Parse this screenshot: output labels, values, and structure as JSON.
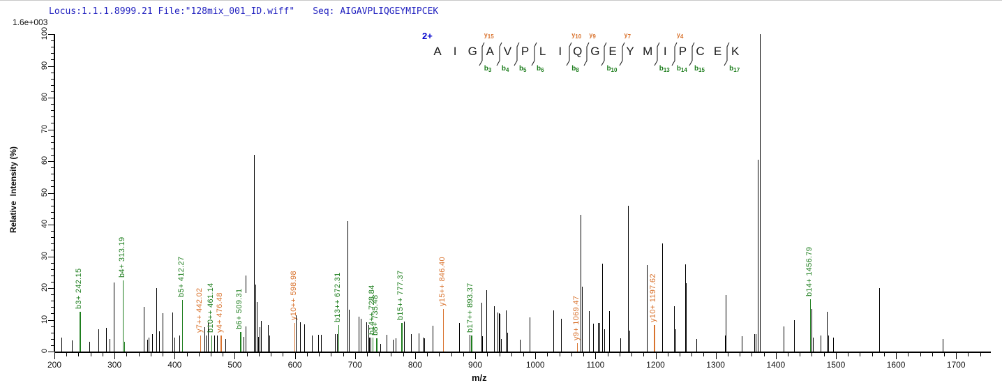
{
  "header": {
    "locus_file": "Locus:1.1.1.8999.21 File:\"128mix_001_ID.wiff\"",
    "seq_label": "Seq: AIGAVPLIQGEYMIPCEK"
  },
  "y_max_label": "1.6e+003",
  "colors": {
    "header_blue": "#2222c0",
    "charge_blue": "#0000cc",
    "b_ion_green": "#1e7e1e",
    "y_ion_orange": "#d9732e",
    "peak_black": "#000000"
  },
  "sequence": {
    "charge_label": "2+",
    "residues": "AIGAVPLIQGEYMIPCEK",
    "fragments": [
      {
        "after": 3,
        "y": "y15",
        "b": "b3"
      },
      {
        "after": 4,
        "b": "b4"
      },
      {
        "after": 5,
        "b": "b5"
      },
      {
        "after": 6,
        "b": "b6"
      },
      {
        "after": 8,
        "y": "y10",
        "b": "b8"
      },
      {
        "after": 9,
        "y": "y9"
      },
      {
        "after": 10,
        "b": "b10"
      },
      {
        "after": 11,
        "y": "y7"
      },
      {
        "after": 13,
        "b": "b13"
      },
      {
        "after": 14,
        "y": "y4",
        "b": "b14"
      },
      {
        "after": 15,
        "b": "b15"
      },
      {
        "after": 17,
        "b": "b17"
      }
    ]
  },
  "chart_data": {
    "type": "bar",
    "subtype": "ms2-peptide-fragment-spectrum",
    "title": "",
    "xlabel": "m/z",
    "ylabel": "Relative  Intensity (%)",
    "xlim": [
      200,
      1758
    ],
    "ylim": [
      0,
      100
    ],
    "x_major_ticks": [
      200,
      300,
      400,
      500,
      600,
      700,
      800,
      900,
      1000,
      1100,
      1200,
      1300,
      1400,
      1500,
      1600,
      1700
    ],
    "x_minor_step": 20,
    "y_major_ticks": [
      0,
      10,
      20,
      30,
      40,
      50,
      60,
      70,
      80,
      90,
      100
    ],
    "y_minor_step": 2,
    "grid": false,
    "legend": "none",
    "floating_mark": {
      "mz": 518.5,
      "from_pct": 18.5,
      "to_pct": 24
    },
    "peaks": [
      [
        212,
        4.5,
        "k"
      ],
      [
        229,
        3.6,
        "k"
      ],
      [
        242.15,
        12.5,
        "b",
        "b3+ 242.15"
      ],
      [
        258,
        3.1,
        "k"
      ],
      [
        273,
        7.1,
        "k"
      ],
      [
        286,
        7.4,
        "k"
      ],
      [
        292,
        3.9,
        "k"
      ],
      [
        299,
        21.8,
        "k"
      ],
      [
        313.19,
        22.5,
        "b",
        "b4+ 313.19"
      ],
      [
        316,
        3,
        "b"
      ],
      [
        348,
        14,
        "k"
      ],
      [
        354,
        3.8,
        "k"
      ],
      [
        357,
        4.5,
        "k"
      ],
      [
        362,
        5.5,
        "k"
      ],
      [
        369.5,
        19.9,
        "k"
      ],
      [
        374,
        6.3,
        "k"
      ],
      [
        380,
        12,
        "k"
      ],
      [
        396,
        12.4,
        "k"
      ],
      [
        400,
        4.5,
        "k"
      ],
      [
        408,
        5,
        "k"
      ],
      [
        412.27,
        16.3,
        "b",
        "b5+ 412.27"
      ],
      [
        442.02,
        5,
        "y",
        "y7++ 442.02"
      ],
      [
        449,
        7.7,
        "k"
      ],
      [
        452,
        5,
        "k"
      ],
      [
        455,
        9,
        "k"
      ],
      [
        461.14,
        5.1,
        "b",
        "b10++ 461.14"
      ],
      [
        466,
        5,
        "k"
      ],
      [
        470,
        5,
        "k"
      ],
      [
        476.48,
        5.1,
        "y",
        "y4+ 476.48"
      ],
      [
        484,
        4,
        "k"
      ],
      [
        509.31,
        6.2,
        "b",
        "b6+ 509.31"
      ],
      [
        515,
        4.7,
        "k"
      ],
      [
        518,
        7.9,
        "k"
      ],
      [
        532,
        62,
        "k"
      ],
      [
        534,
        21.2,
        "k"
      ],
      [
        537,
        15.7,
        "k"
      ],
      [
        539,
        4.7,
        "k"
      ],
      [
        541,
        7.7,
        "k"
      ],
      [
        544,
        9.6,
        "k"
      ],
      [
        555,
        8.4,
        "k"
      ],
      [
        557,
        5,
        "k"
      ],
      [
        598.98,
        9.1,
        "y",
        "y10++ 598.98"
      ],
      [
        602,
        11.5,
        "k"
      ],
      [
        609,
        9.3,
        "k"
      ],
      [
        616,
        8.6,
        "k"
      ],
      [
        628,
        5.1,
        "k"
      ],
      [
        639,
        5.3,
        "k"
      ],
      [
        643,
        5.3,
        "k"
      ],
      [
        667,
        5.5,
        "k"
      ],
      [
        670,
        5.5,
        "k"
      ],
      [
        672.31,
        8.4,
        "b",
        "b13++ 672.31"
      ],
      [
        688,
        41,
        "k"
      ],
      [
        690,
        13.1,
        "k"
      ],
      [
        706,
        11,
        "k"
      ],
      [
        710,
        10.4,
        "k"
      ],
      [
        719,
        9.3,
        "k"
      ],
      [
        722,
        8.4,
        "k"
      ],
      [
        724,
        4.5,
        "k"
      ],
      [
        726,
        4.5,
        "k"
      ],
      [
        728.84,
        4.5,
        "b",
        "b14++ 728.84"
      ],
      [
        735.48,
        4.2,
        "b",
        "b8+ 735.48"
      ],
      [
        742,
        2.5,
        "k"
      ],
      [
        753,
        5.3,
        "k"
      ],
      [
        763,
        3.8,
        "k"
      ],
      [
        768,
        4.1,
        "k"
      ],
      [
        777.37,
        9.1,
        "b",
        "b15++ 777.37"
      ],
      [
        781,
        9.5,
        "k"
      ],
      [
        793,
        5.5,
        "k"
      ],
      [
        806,
        5.8,
        "k"
      ],
      [
        813,
        4.5,
        "k"
      ],
      [
        815,
        4.2,
        "k"
      ],
      [
        829,
        8.2,
        "k"
      ],
      [
        846.4,
        13.5,
        "y",
        "y15++ 846.40"
      ],
      [
        873,
        9,
        "k"
      ],
      [
        891,
        5.2,
        "k"
      ],
      [
        893.37,
        5.1,
        "b",
        "b17++ 893.37"
      ],
      [
        910,
        15.3,
        "k"
      ],
      [
        912,
        4.9,
        "k"
      ],
      [
        919,
        19.3,
        "k"
      ],
      [
        931,
        14.3,
        "k"
      ],
      [
        937,
        12.2,
        "k"
      ],
      [
        939,
        12,
        "k"
      ],
      [
        941,
        11.8,
        "k"
      ],
      [
        943,
        4,
        "k"
      ],
      [
        951,
        13,
        "k"
      ],
      [
        953,
        6,
        "k"
      ],
      [
        974,
        3.7,
        "k"
      ],
      [
        991,
        10.7,
        "k"
      ],
      [
        1030,
        12.9,
        "k"
      ],
      [
        1043,
        10.4,
        "k"
      ],
      [
        1069.47,
        2.7,
        "y",
        "y9+ 1069.47"
      ],
      [
        1075,
        43,
        "k"
      ],
      [
        1078,
        20.4,
        "k"
      ],
      [
        1089,
        12.8,
        "k"
      ],
      [
        1096,
        8.8,
        "k"
      ],
      [
        1104,
        9,
        "k"
      ],
      [
        1107,
        9,
        "k"
      ],
      [
        1111,
        27.7,
        "k"
      ],
      [
        1115,
        7,
        "k"
      ],
      [
        1123,
        12.8,
        "k"
      ],
      [
        1141,
        4.2,
        "k"
      ],
      [
        1154,
        46,
        "k"
      ],
      [
        1157,
        6.5,
        "k"
      ],
      [
        1185,
        27.3,
        "k"
      ],
      [
        1197.62,
        8.3,
        "y",
        "y10+ 1197.62"
      ],
      [
        1211,
        34,
        "k"
      ],
      [
        1231,
        14.2,
        "k"
      ],
      [
        1233,
        7,
        "k"
      ],
      [
        1249,
        27.4,
        "k"
      ],
      [
        1251,
        21.5,
        "k"
      ],
      [
        1268,
        3.9,
        "k"
      ],
      [
        1315,
        5,
        "k"
      ],
      [
        1317,
        17.8,
        "k"
      ],
      [
        1343,
        4.8,
        "k"
      ],
      [
        1364,
        5.5,
        "k"
      ],
      [
        1366,
        5.5,
        "k"
      ],
      [
        1370,
        60.5,
        "k"
      ],
      [
        1373,
        100,
        "k"
      ],
      [
        1413,
        8,
        "k"
      ],
      [
        1430,
        10,
        "k"
      ],
      [
        1456.79,
        16.5,
        "b",
        "b14+ 1456.79"
      ],
      [
        1459,
        13.5,
        "k"
      ],
      [
        1462,
        4.5,
        "k"
      ],
      [
        1475,
        5,
        "k"
      ],
      [
        1485,
        12.5,
        "k"
      ],
      [
        1487,
        5,
        "k"
      ],
      [
        1495,
        4.3,
        "k"
      ],
      [
        1572,
        20,
        "k"
      ],
      [
        1678,
        3.9,
        "k"
      ]
    ]
  }
}
